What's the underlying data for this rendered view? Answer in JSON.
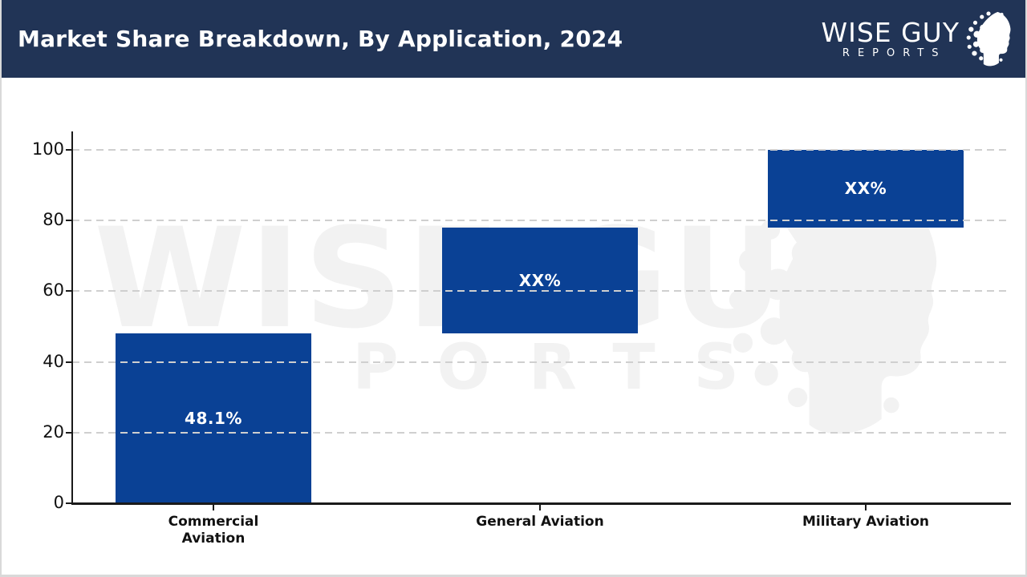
{
  "header": {
    "title": "Market Share Breakdown, By Application, 2024",
    "logo": {
      "wordmark": "WISE GUY",
      "subtext": "REPORTS"
    }
  },
  "watermark": {
    "line1": "WISE GUY",
    "line2": "REPORTS"
  },
  "colors": {
    "header_bg": "#213456",
    "bar": "#0a4195",
    "bar_label": "#ffffff",
    "axis": "#1a1a1a",
    "grid": "#cfcfcf",
    "watermark": "#f2f2f2"
  },
  "chart_data": {
    "type": "bar",
    "subtype": "waterfall-breakdown",
    "title": "Market Share Breakdown, By Application, 2024",
    "categories": [
      "Commercial\nAviation",
      "General Aviation",
      "Military Aviation"
    ],
    "segments": [
      {
        "category": "Commercial Aviation",
        "start": 0,
        "end": 48.1,
        "value": 48.1,
        "label": "48.1%"
      },
      {
        "category": "General Aviation",
        "start": 48.1,
        "end": 78.1,
        "value": "XX",
        "label": "XX%"
      },
      {
        "category": "Military Aviation",
        "start": 78.1,
        "end": 100,
        "value": "XX",
        "label": "XX%"
      }
    ],
    "xlabel": "",
    "ylabel": "",
    "ylim": [
      0,
      100
    ],
    "yticks": [
      0,
      20,
      40,
      60,
      80,
      100
    ],
    "grid": "horizontal-dashed",
    "legend": "none",
    "bar_color": "#0a4195"
  }
}
